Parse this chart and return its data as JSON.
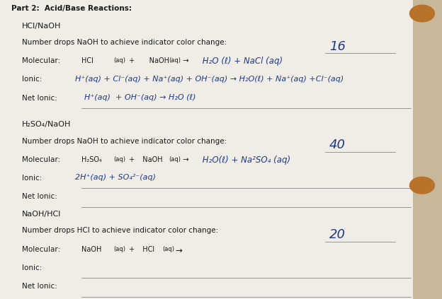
{
  "bg_color": "#c8b89a",
  "paper_color": "#f0ede6",
  "title": "Part 2:  Acid/Base Reactions:",
  "dot_color": "#b8722a",
  "dot1": [
    0.955,
    0.955
  ],
  "dot2": [
    0.955,
    0.38
  ],
  "dot_r": 0.028,
  "sections": [
    {
      "header": "HCl/NaOH",
      "rows": [
        {
          "kind": "drops",
          "printed": "Number drops NaOH to achieve indicator color change:",
          "answer": "16"
        },
        {
          "kind": "mol",
          "label": "Molecular:",
          "p1": "HCl",
          "p1sub": "(aq)",
          "p2": " +",
          "p3": "     NaOH",
          "p3sub": "(aq)",
          "arrow": "→",
          "hw": " H₂O (ℓ) + NaCl (aq)"
        },
        {
          "kind": "ionic",
          "label": "Ionic:",
          "hw": "H⁺(aq) + Cl⁻(aq) + Na⁺(aq) + OH⁻(aq) → H₂O(ℓ) + Na⁺(aq) +Cl⁻(aq)"
        },
        {
          "kind": "netionic",
          "label": "Net Ionic:",
          "hw": "H⁺(aq)  + OH⁻(aq) → H₂O (ℓ)"
        }
      ]
    },
    {
      "header": "H₂SO₄/NaOH",
      "rows": [
        {
          "kind": "drops",
          "printed": "Number drops NaOH to achieve indicator color change:",
          "answer": "40"
        },
        {
          "kind": "mol",
          "label": "Molecular:",
          "p1": "H₂SO₄",
          "p1sub": "(aq)",
          "p2": " +",
          "p3": "  NaOH",
          "p3sub": "(aq)",
          "arrow": "→",
          "hw": " H₂O(ℓ) + Na²SO₄ (aq)"
        },
        {
          "kind": "ionic_line",
          "label": "Ionic:",
          "hw": "2H⁺(aq) + SO₄²⁻(aq)"
        },
        {
          "kind": "line_only",
          "label": "Net Ionic:"
        }
      ]
    },
    {
      "header": "NaOH/HCl",
      "rows": [
        {
          "kind": "drops",
          "printed": "Number drops HCl to achieve indicator color change:",
          "answer": "20"
        },
        {
          "kind": "mol_arrow",
          "label": "Molecular:",
          "p1": "NaOH",
          "p1sub": "(aq)",
          "p2": " +",
          "p3": "  HCl",
          "p3sub": "(aq)",
          "arrow": "→"
        },
        {
          "kind": "line_only",
          "label": "Ionic:"
        },
        {
          "kind": "line_only",
          "label": "Net Ionic:"
        }
      ]
    }
  ]
}
